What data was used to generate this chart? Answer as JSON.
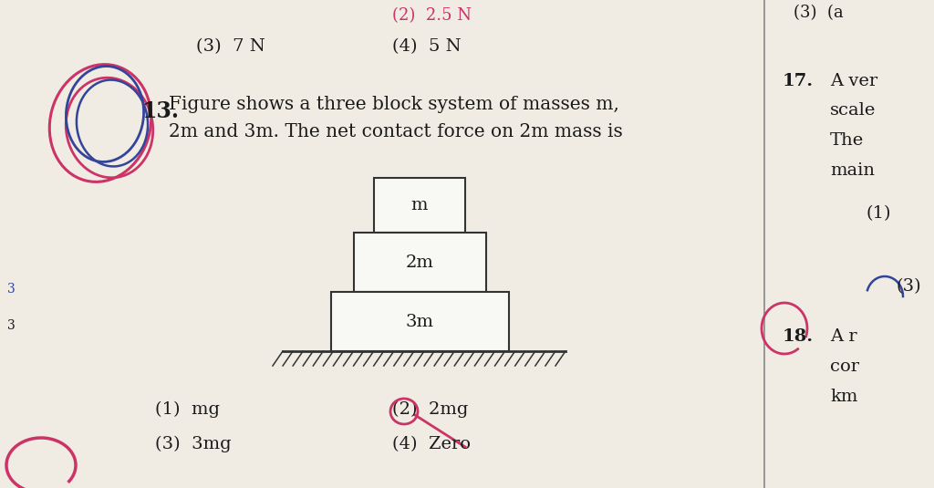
{
  "bg_color": "#f0ece4",
  "text_color": "#1a1a1a",
  "block_fill": "#f8f8f4",
  "block_edge": "#333333",
  "divider_color": "#888888",
  "circle_color_pink": "#cc3366",
  "circle_color_blue": "#334499",
  "circle_color_purple": "#7744aa",
  "top_option3": "(3)  7 N",
  "top_option4": "(4)  5 N",
  "top_prev": "(2)  2.5 N",
  "q13_num": "13.",
  "question_line1": "Figure shows a three block system of masses m,",
  "question_line2": "2m and 3m. The net contact force on 2m mass is",
  "block_m": "m",
  "block_2m": "2m",
  "block_3m": "3m",
  "opt1": "(1)  mg",
  "opt2": "(2)  2mg",
  "opt3": "(3)  3mg",
  "opt4": "(4)  Zero",
  "right_top": "(3)  (a",
  "right_17": "17.",
  "right_17b": "A ver",
  "right_scale": "scale",
  "right_the": "The",
  "right_main": "main",
  "right_1": "(1)",
  "right_3": "(3)",
  "right_18": "18.",
  "right_18b": "A r",
  "right_cor": "cor",
  "right_km": "km"
}
